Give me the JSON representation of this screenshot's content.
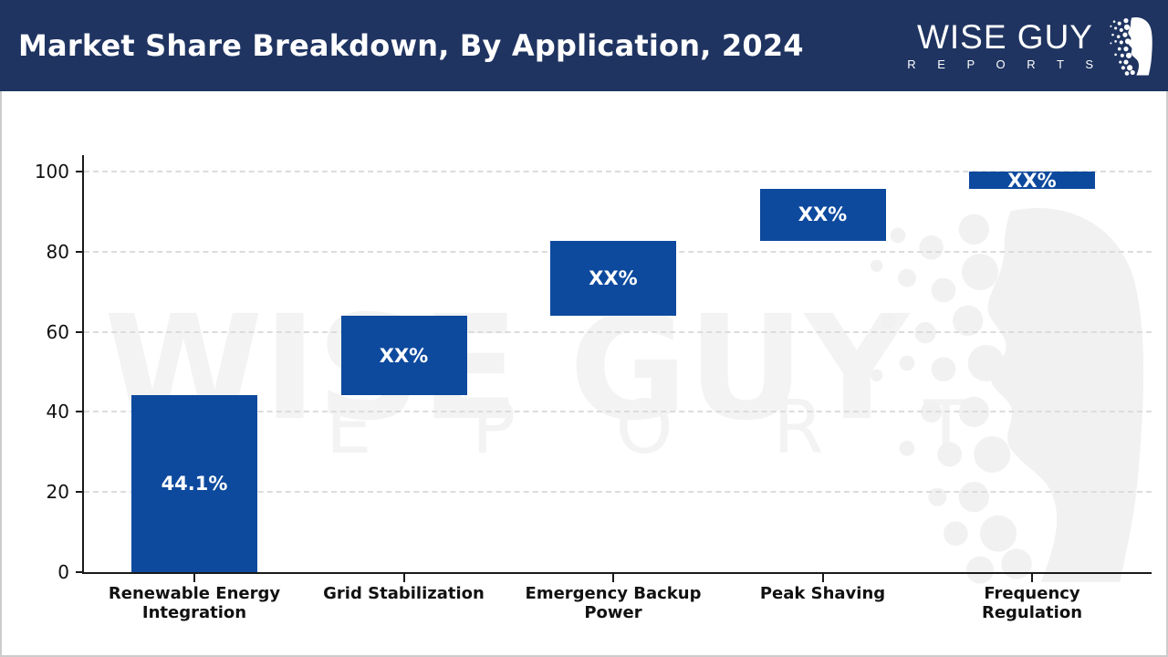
{
  "header": {
    "title": "Market Share Breakdown, By Application, 2024",
    "bg_color": "#1f3461",
    "logo": {
      "line1": "WISE GUY",
      "line2": "R E P O R T S"
    }
  },
  "watermark": {
    "line1": "WISE GUY",
    "line2": "R E P O R T S"
  },
  "chart_data": {
    "type": "bar",
    "variant": "waterfall",
    "title": "Market Share Breakdown, By Application, 2024",
    "categories": [
      "Renewable Energy\nIntegration",
      "Grid Stabilization",
      "Emergency Backup\nPower",
      "Peak Shaving",
      "Frequency\nRegulation"
    ],
    "series": [
      {
        "name": "Market share (%)",
        "segments": [
          {
            "category": "Renewable Energy Integration",
            "start": 0,
            "end": 44.1,
            "label": "44.1%"
          },
          {
            "category": "Grid Stabilization",
            "start": 44.1,
            "end": 63.9,
            "label": "XX%"
          },
          {
            "category": "Emergency Backup Power",
            "start": 63.9,
            "end": 82.8,
            "label": "XX%"
          },
          {
            "category": "Peak Shaving",
            "start": 82.8,
            "end": 95.6,
            "label": "XX%"
          },
          {
            "category": "Frequency Regulation",
            "start": 95.6,
            "end": 100,
            "label": "XX%"
          }
        ]
      }
    ],
    "xlabel": "",
    "ylabel": "",
    "ylim": [
      0,
      100
    ],
    "yticks": [
      0,
      20,
      40,
      60,
      80,
      100
    ],
    "grid": "horizontal-dashed",
    "legend": "none",
    "bar_color": "#0d4a9e",
    "bar_label_color": "#ffffff",
    "axis_color": "#1a1a1a"
  }
}
